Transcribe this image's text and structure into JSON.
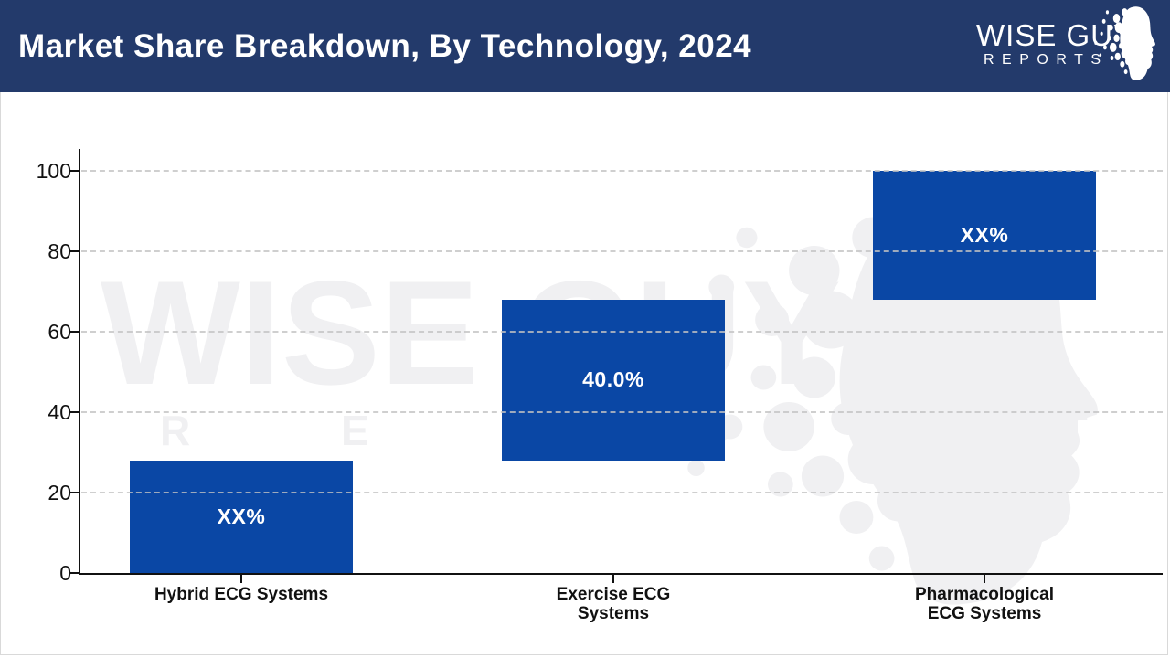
{
  "header": {
    "title": "Market Share Breakdown, By Technology, 2024",
    "bg_color": "#233A6B",
    "logo": {
      "line1": "WISE GUY",
      "line2": "REPORTS",
      "head_icon": "dotted-head-profile"
    }
  },
  "watermark": {
    "line1": "WISE GUY",
    "line2": "R E P O R T S",
    "head_icon": "dotted-head-profile",
    "color": "#f0f0f2"
  },
  "chart_data": {
    "type": "bar",
    "subtype": "stacked-waterfall",
    "title": "Market Share Breakdown, By Technology, 2024",
    "xlabel": "",
    "ylabel": "",
    "categories": [
      "Hybrid ECG Systems",
      "Exercise ECG Systems",
      "Pharmacological ECG Systems"
    ],
    "category_lines": [
      [
        "Hybrid ECG Systems"
      ],
      [
        "Exercise ECG",
        "Systems"
      ],
      [
        "Pharmacological",
        "ECG Systems"
      ]
    ],
    "segments": [
      {
        "category": "Hybrid ECG Systems",
        "start": 0,
        "end": 28,
        "value": 28,
        "label": "XX%"
      },
      {
        "category": "Exercise ECG Systems",
        "start": 28,
        "end": 68,
        "value": 40,
        "label": "40.0%"
      },
      {
        "category": "Pharmacological ECG Systems",
        "start": 68,
        "end": 100,
        "value": 32,
        "label": "XX%"
      }
    ],
    "yticks": [
      0,
      20,
      40,
      60,
      80,
      100
    ],
    "ylim": [
      0,
      105
    ],
    "grid": "horizontal-dashed-over-bars",
    "legend": "none",
    "bar_color": "#0A47A5",
    "grid_color": "#d8d8d8",
    "axis_color": "#111111"
  }
}
